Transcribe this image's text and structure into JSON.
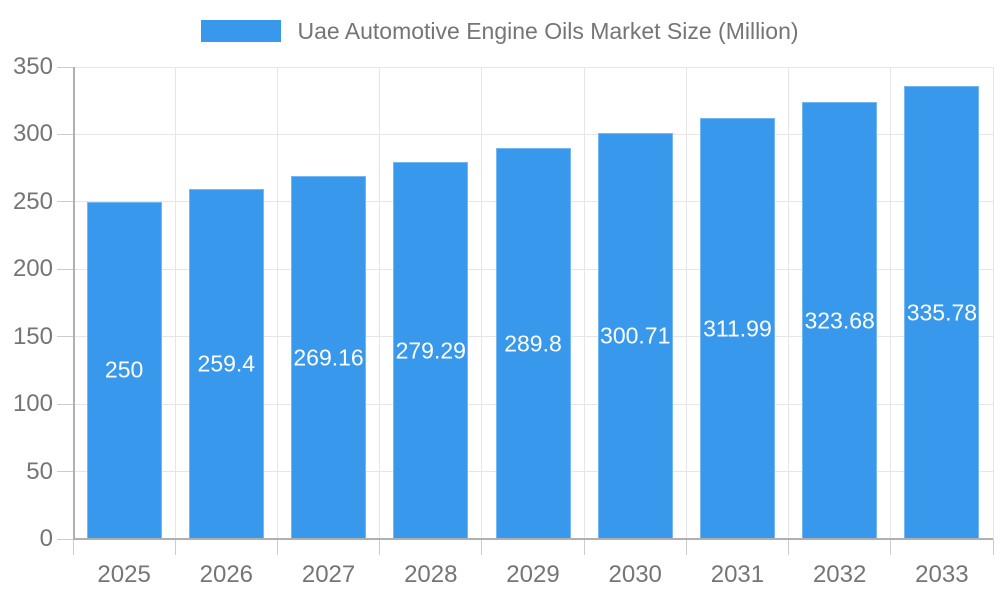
{
  "legend": {
    "swatch_color": "#3898ec",
    "label": "Uae Automotive Engine Oils Market Size (Million)"
  },
  "colors": {
    "bar": "#3898ec",
    "bar_label_text": "#ffffff",
    "axis_text": "#757575",
    "gridline": "#e6e6e6",
    "axis_line": "#b0b0b0",
    "tick": "#cccccc",
    "background": "#ffffff"
  },
  "chart_data": {
    "type": "bar",
    "title": "Uae Automotive Engine Oils Market Size (Million)",
    "categories": [
      "2025",
      "2026",
      "2027",
      "2028",
      "2029",
      "2030",
      "2031",
      "2032",
      "2033"
    ],
    "values": [
      250,
      259.4,
      269.16,
      279.29,
      289.8,
      300.71,
      311.99,
      323.68,
      335.78
    ],
    "value_labels": [
      "250",
      "259.4",
      "269.16",
      "279.29",
      "289.8",
      "300.71",
      "311.99",
      "323.68",
      "335.78"
    ],
    "xlabel": "",
    "ylabel": "",
    "ylim": [
      0,
      350
    ],
    "ytick_step": 50,
    "ytick_labels": [
      "0",
      "50",
      "100",
      "150",
      "200",
      "250",
      "300",
      "350"
    ],
    "grid": true,
    "legend_position": "top",
    "series_name": "Uae Automotive Engine Oils Market Size (Million)"
  }
}
